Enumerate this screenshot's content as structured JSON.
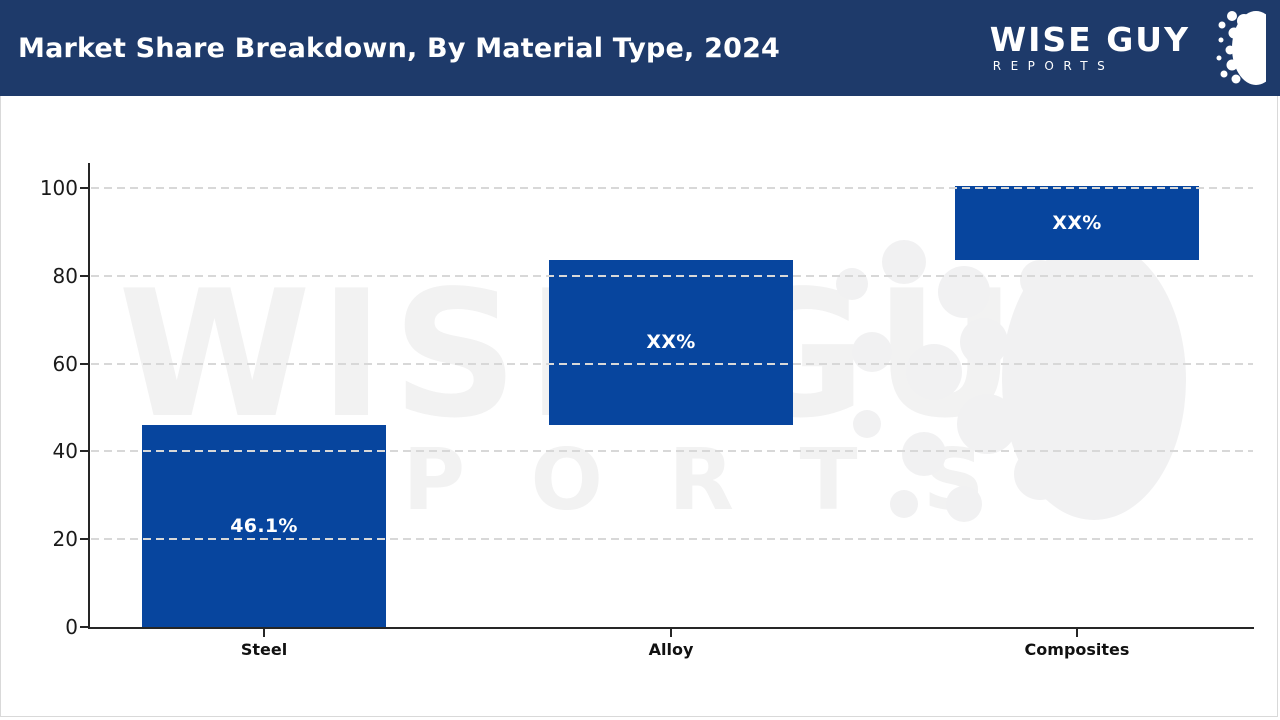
{
  "header": {
    "title": "Market Share Breakdown, By Material Type, 2024",
    "logo_line1": "WISE GUY",
    "logo_line2": "REPORTS"
  },
  "watermark": {
    "line1": "WISE GUY",
    "line2": "R E P O R T S"
  },
  "chart_data": {
    "type": "bar",
    "variant": "floating-stacked-percentage-breakdown",
    "title": "Market Share Breakdown, By Material Type, 2024",
    "categories": [
      "Steel",
      "Alloy",
      "Composites"
    ],
    "segments": [
      {
        "category": "Steel",
        "start": 0,
        "end": 46.1,
        "value": 46.1,
        "value_label": "46.1%"
      },
      {
        "category": "Alloy",
        "start": 46.1,
        "end": 83.6,
        "value": 37.5,
        "value_label": "XX%"
      },
      {
        "category": "Composites",
        "start": 83.6,
        "end": 100.5,
        "value": 16.9,
        "value_label": "XX%"
      }
    ],
    "yticks": [
      0,
      20,
      40,
      60,
      80,
      100
    ],
    "ylim": [
      0,
      106
    ],
    "xlabel": "",
    "ylabel": "",
    "grid": "horizontal-dashed-over-bars",
    "legend": "none",
    "colors": {
      "bar": "#07459e",
      "bar_label": "#ffffff",
      "grid_line": "#d8d8d8",
      "axis_line": "#262626",
      "tick_label": "#1a1a1a",
      "header_bg": "#1e3a6a",
      "header_text": "#ffffff",
      "watermark": "#f2f2f2",
      "background": "#ffffff"
    }
  }
}
